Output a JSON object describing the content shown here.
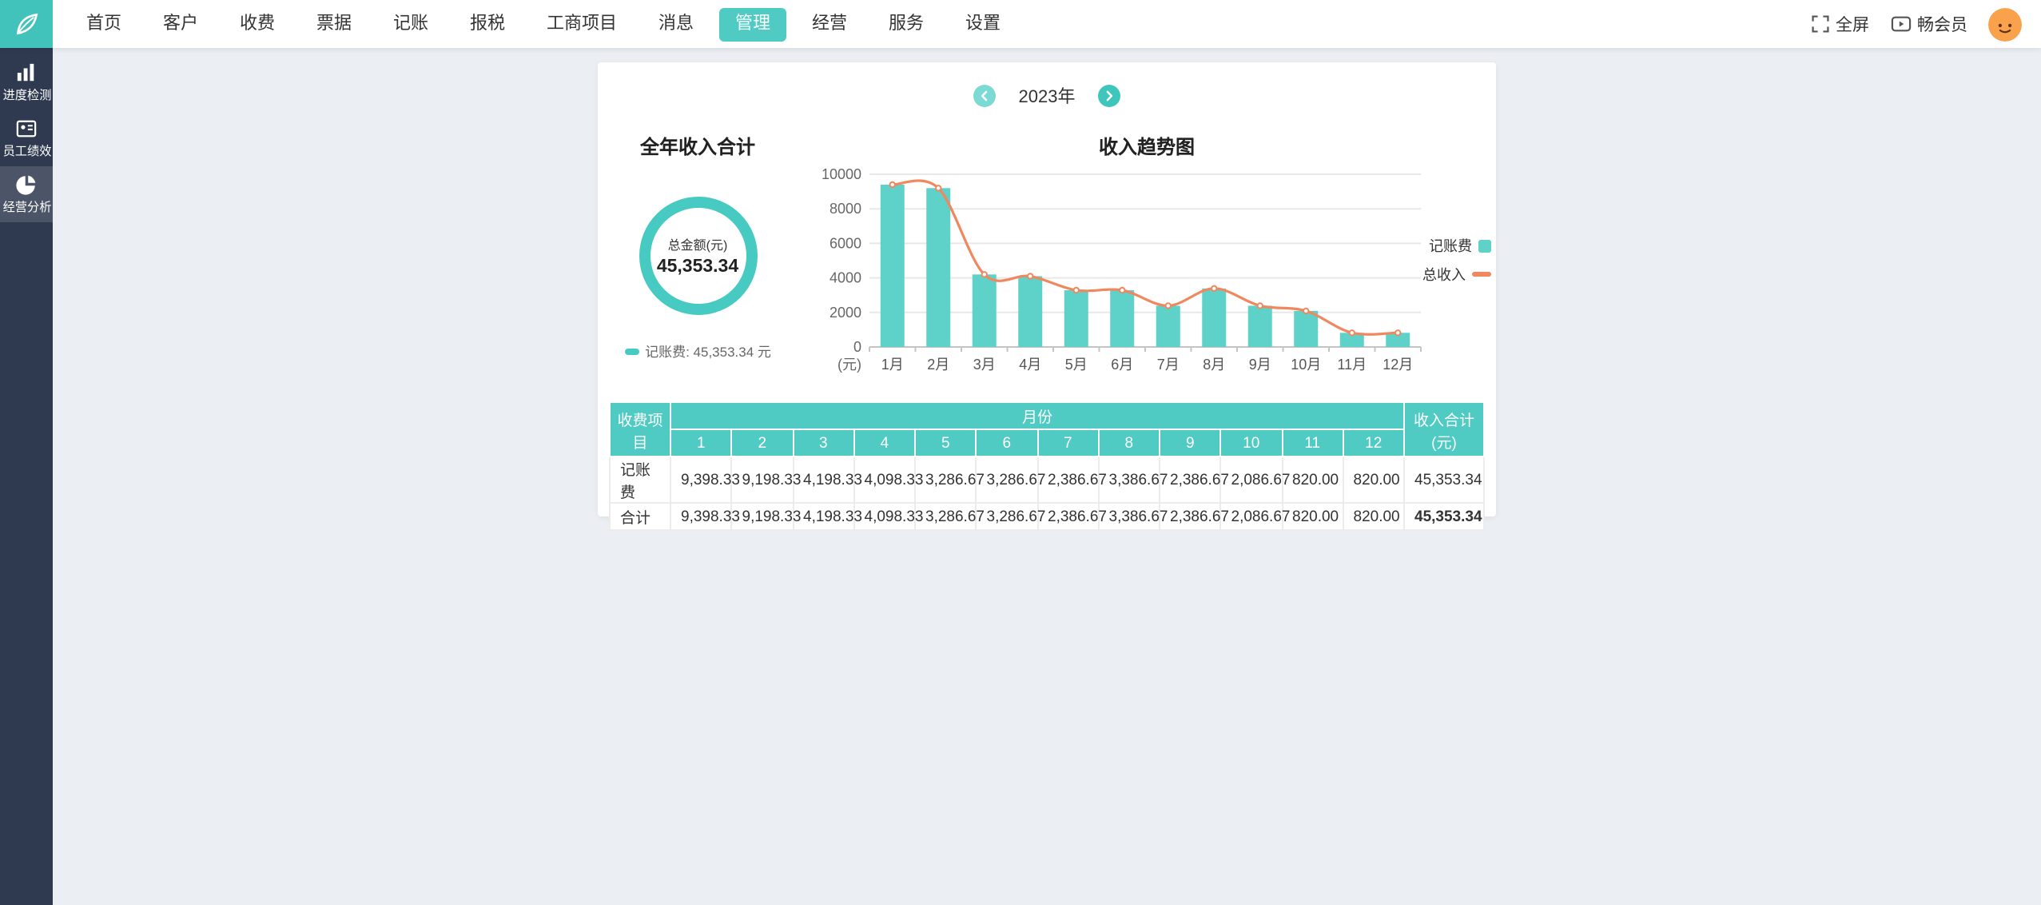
{
  "topbar": {
    "menu": [
      {
        "id": "home",
        "label": "首页"
      },
      {
        "id": "customers",
        "label": "客户"
      },
      {
        "id": "fees",
        "label": "收费"
      },
      {
        "id": "invoices",
        "label": "票据"
      },
      {
        "id": "bookkeeping",
        "label": "记账"
      },
      {
        "id": "tax-filing",
        "label": "报税"
      },
      {
        "id": "business-projects",
        "label": "工商项目"
      },
      {
        "id": "messages",
        "label": "消息"
      },
      {
        "id": "management",
        "label": "管理",
        "active": true
      },
      {
        "id": "operation",
        "label": "经营"
      },
      {
        "id": "services",
        "label": "服务"
      },
      {
        "id": "settings",
        "label": "设置"
      }
    ],
    "fullscreen_label": "全屏",
    "member_label": "畅会员"
  },
  "sidebar": {
    "items": [
      {
        "id": "progress-check",
        "label": "进度检测"
      },
      {
        "id": "employee-performance",
        "label": "员工绩效"
      },
      {
        "id": "business-analysis",
        "label": "经营分析",
        "active": true
      }
    ]
  },
  "main": {
    "year_label": "2023年",
    "summary": {
      "title": "全年收入合计",
      "donut_label": "总金额(元)",
      "donut_value": "45,353.34",
      "legend": "记账费: 45,353.34 元"
    },
    "trend_title": "收入趋势图",
    "table": {
      "corner_header": "收费项目",
      "month_header": "月份",
      "total_header": "收入合计(元)",
      "month_cols": [
        "1",
        "2",
        "3",
        "4",
        "5",
        "6",
        "7",
        "8",
        "9",
        "10",
        "11",
        "12"
      ],
      "rows": [
        {
          "id": "bookkeeping-fee",
          "label": "记账费",
          "values": [
            "9,398.33",
            "9,198.33",
            "4,198.33",
            "4,098.33",
            "3,286.67",
            "3,286.67",
            "2,386.67",
            "3,386.67",
            "2,386.67",
            "2,086.67",
            "820.00",
            "820.00"
          ],
          "total": "45,353.34",
          "bold": false
        },
        {
          "id": "total",
          "label": "合计",
          "values": [
            "9,398.33",
            "9,198.33",
            "4,198.33",
            "4,098.33",
            "3,286.67",
            "3,286.67",
            "2,386.67",
            "3,386.67",
            "2,386.67",
            "2,086.67",
            "820.00",
            "820.00"
          ],
          "total": "45,353.34",
          "bold": true
        }
      ]
    }
  },
  "chart_data": {
    "type": "bar",
    "title": "收入趋势图",
    "categories": [
      "1月",
      "2月",
      "3月",
      "4月",
      "5月",
      "6月",
      "7月",
      "8月",
      "9月",
      "10月",
      "11月",
      "12月"
    ],
    "series": [
      {
        "id": "bookkeeping-fee",
        "name": "记账费",
        "type": "bar",
        "color": "#5ed1c9",
        "values": [
          9398.33,
          9198.33,
          4198.33,
          4098.33,
          3286.67,
          3286.67,
          2386.67,
          3386.67,
          2386.67,
          2086.67,
          820.0,
          820.0
        ]
      },
      {
        "id": "total-income",
        "name": "总收入",
        "type": "line",
        "color": "#f0875e",
        "values": [
          9398.33,
          9198.33,
          4198.33,
          4098.33,
          3286.67,
          3286.67,
          2386.67,
          3386.67,
          2386.67,
          2086.67,
          820.0,
          820.0
        ]
      }
    ],
    "ylabel": "(元)",
    "ylim": [
      0,
      10000
    ],
    "yticks": [
      0,
      2000,
      4000,
      6000,
      8000,
      10000
    ],
    "legend_position": "right",
    "grid": true,
    "accent_color": "#4fcbc3"
  }
}
